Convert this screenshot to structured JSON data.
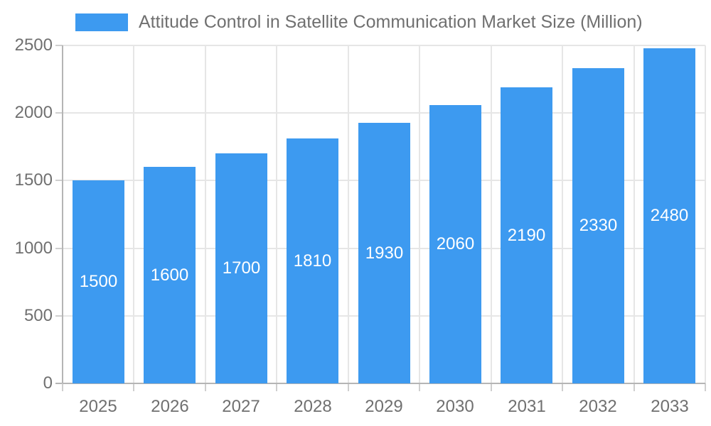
{
  "chart_data": {
    "type": "bar",
    "title": "Attitude Control in Satellite Communication Market Size (Million)",
    "categories": [
      "2025",
      "2026",
      "2027",
      "2028",
      "2029",
      "2030",
      "2031",
      "2032",
      "2033"
    ],
    "values": [
      1500,
      1600,
      1700,
      1810,
      1930,
      2060,
      2190,
      2330,
      2480
    ],
    "xlabel": "",
    "ylabel": "",
    "ylim": [
      0,
      2500
    ],
    "yticks": [
      0,
      500,
      1000,
      1500,
      2000,
      2500
    ],
    "grid": true,
    "legend_position": "top",
    "bar_label_position": "inside-middle",
    "colors": {
      "bar": "#3D9AF0",
      "bar_label": "#FFFFFF",
      "axis_text": "#707070",
      "legend_text": "#707070",
      "grid_line": "#E6E6E6",
      "axis_line": "#B5B5B5",
      "tick_line": "#CFCFCF",
      "background": "#FFFFFF"
    }
  }
}
